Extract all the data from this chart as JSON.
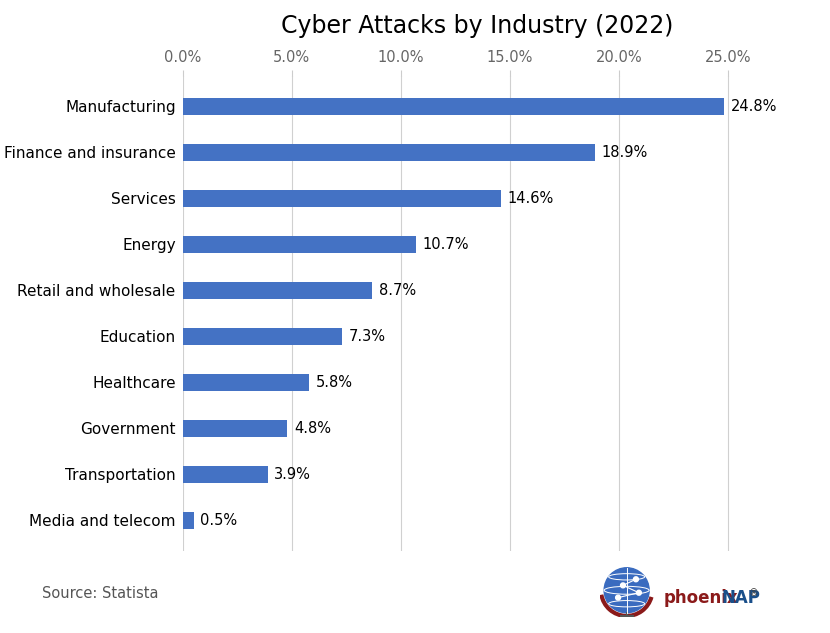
{
  "title": "Cyber Attacks by Industry (2022)",
  "categories": [
    "Manufacturing",
    "Finance and insurance",
    "Services",
    "Energy",
    "Retail and wholesale",
    "Education",
    "Healthcare",
    "Government",
    "Transportation",
    "Media and telecom"
  ],
  "values": [
    24.8,
    18.9,
    14.6,
    10.7,
    8.7,
    7.3,
    5.8,
    4.8,
    3.9,
    0.5
  ],
  "bar_color": "#4472C4",
  "xlim": [
    0,
    27.0
  ],
  "xticks": [
    0,
    5,
    10,
    15,
    20,
    25
  ],
  "xtick_labels": [
    "0.0%",
    "5.0%",
    "10.0%",
    "15.0%",
    "20.0%",
    "25.0%"
  ],
  "source_text": "Source: Statista",
  "background_color": "#ffffff",
  "title_fontsize": 17,
  "label_fontsize": 11,
  "tick_fontsize": 10.5,
  "value_fontsize": 10.5,
  "bar_height": 0.38
}
